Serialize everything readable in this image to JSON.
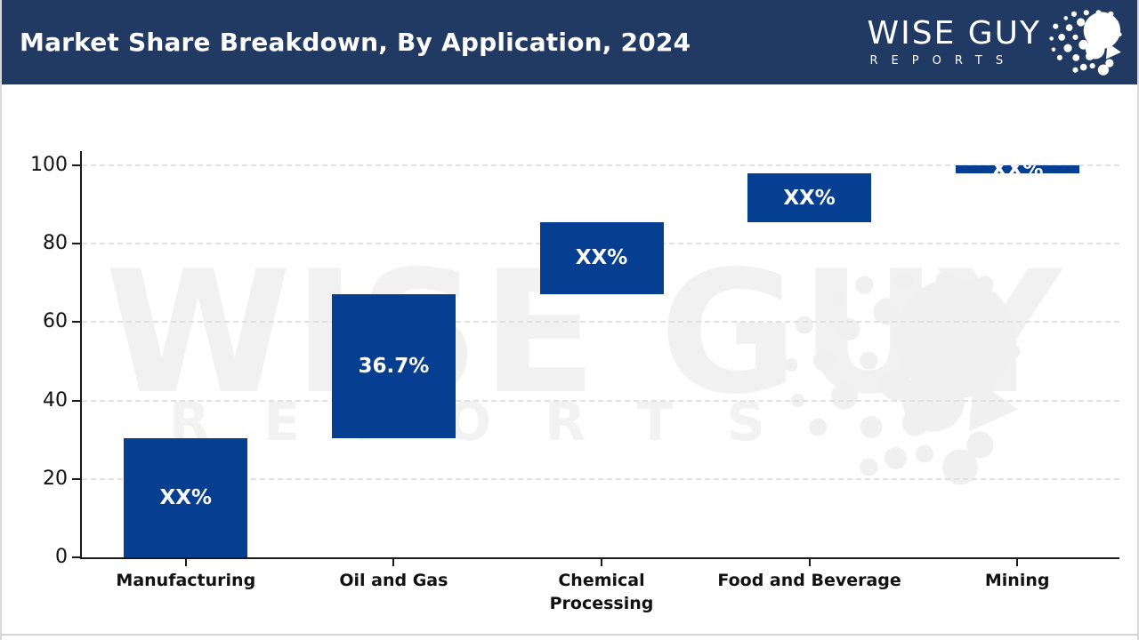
{
  "header": {
    "title": "Market Share Breakdown, By Application, 2024",
    "bg_color": "#213A63",
    "logo": {
      "name": "WISE GUY",
      "tagline": "REPORTS",
      "head_icon": "dotted-face-profile"
    }
  },
  "watermark": {
    "name": "WISE GUY",
    "tagline": "REPORTS",
    "head_icon": "dotted-face-profile"
  },
  "chart_data": {
    "type": "bar",
    "subtype": "waterfall-floating-bars",
    "title": "Market Share Breakdown, By Application, 2024",
    "xlabel": "",
    "ylabel": "",
    "ylim": [
      0,
      100
    ],
    "yticks": [
      0,
      20,
      40,
      60,
      80,
      100
    ],
    "grid": "horizontal-dashed",
    "grid_color": "#e1e1e1",
    "axis_color": "#1a1a1a",
    "bar_color": "#063E92",
    "bar_label_color": "#FFFFFF",
    "legend": "none",
    "categories": [
      "Manufacturing",
      "Oil and Gas",
      "Chemical\nProcessing",
      "Food and Beverage",
      "Mining"
    ],
    "segments": [
      {
        "category": "Manufacturing",
        "start": 0,
        "end": 30.5,
        "value": 30.5,
        "label": "XX%"
      },
      {
        "category": "Oil and Gas",
        "start": 30.5,
        "end": 67.2,
        "value": 36.7,
        "label": "36.7%"
      },
      {
        "category": "Chemical Processing",
        "start": 67.2,
        "end": 85.5,
        "value": 18.3,
        "label": "XX%"
      },
      {
        "category": "Food and Beverage",
        "start": 85.5,
        "end": 97.9,
        "value": 12.4,
        "label": "XX%"
      },
      {
        "category": "Mining",
        "start": 97.9,
        "end": 100,
        "value": 2.1,
        "label": "XX%"
      }
    ]
  }
}
